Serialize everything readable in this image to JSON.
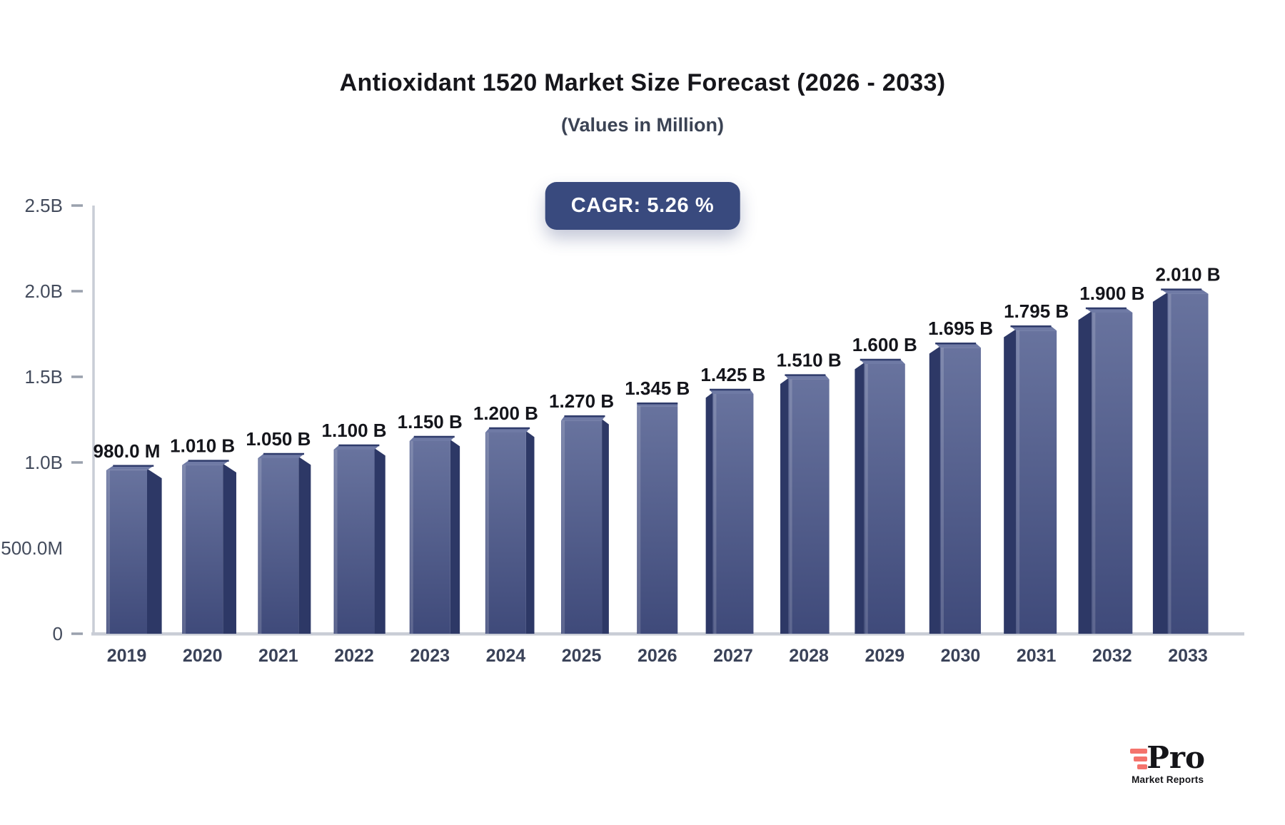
{
  "header": {
    "title": "Antioxidant 1520 Market Size Forecast (2026 - 2033)",
    "subtitle": "(Values in Million)",
    "cagr_label": "CAGR: 5.26 %"
  },
  "logo": {
    "brand": "Pro",
    "tagline": "Market Reports"
  },
  "colors": {
    "badge_bg": "#394a7e",
    "bar_front_top": "#68739e",
    "bar_front_bottom": "#3f4a7a",
    "bar_side": "#2d3866",
    "bar_cap": "#6f7aa5",
    "bar_cap_edge": "#2f3b6b",
    "axis_line": "#c9cdd6",
    "tick_dash": "#9aa1ad",
    "axis_label": "#434b5c",
    "year_label": "#3a4258",
    "value_label": "#14151b",
    "logo_red": "#f4736c",
    "background": "#ffffff"
  },
  "chart_data": {
    "type": "bar",
    "title": "Antioxidant 1520 Market Size Forecast (2026 - 2033)",
    "subtitle": "(Values in Million)",
    "cagr_percent": 5.26,
    "bar_style": "3d-perspective",
    "grid": false,
    "legend": null,
    "categories": [
      "2019",
      "2020",
      "2021",
      "2022",
      "2023",
      "2024",
      "2025",
      "2026",
      "2027",
      "2028",
      "2029",
      "2030",
      "2031",
      "2032",
      "2033"
    ],
    "values_millions": [
      980,
      1010,
      1050,
      1100,
      1150,
      1200,
      1270,
      1345,
      1425,
      1510,
      1600,
      1695,
      1795,
      1900,
      2010
    ],
    "value_labels": [
      "980.0 M",
      "1.010 B",
      "1.050 B",
      "1.100 B",
      "1.150 B",
      "1.200 B",
      "1.270 B",
      "1.345 B",
      "1.425 B",
      "1.510 B",
      "1.600 B",
      "1.695 B",
      "1.795 B",
      "1.900 B",
      "2.010 B"
    ],
    "y_axis": {
      "max_millions": 2500,
      "ticks": [
        {
          "label": "2.5B",
          "value_millions": 2500,
          "dash": true
        },
        {
          "label": "2.0B",
          "value_millions": 2000,
          "dash": true
        },
        {
          "label": "1.5B",
          "value_millions": 1500,
          "dash": true
        },
        {
          "label": "1.0B",
          "value_millions": 1000,
          "dash": true
        },
        {
          "label": "500.0M",
          "value_millions": 500,
          "dash": false
        },
        {
          "label": "0",
          "value_millions": 0,
          "dash": true
        }
      ]
    }
  }
}
